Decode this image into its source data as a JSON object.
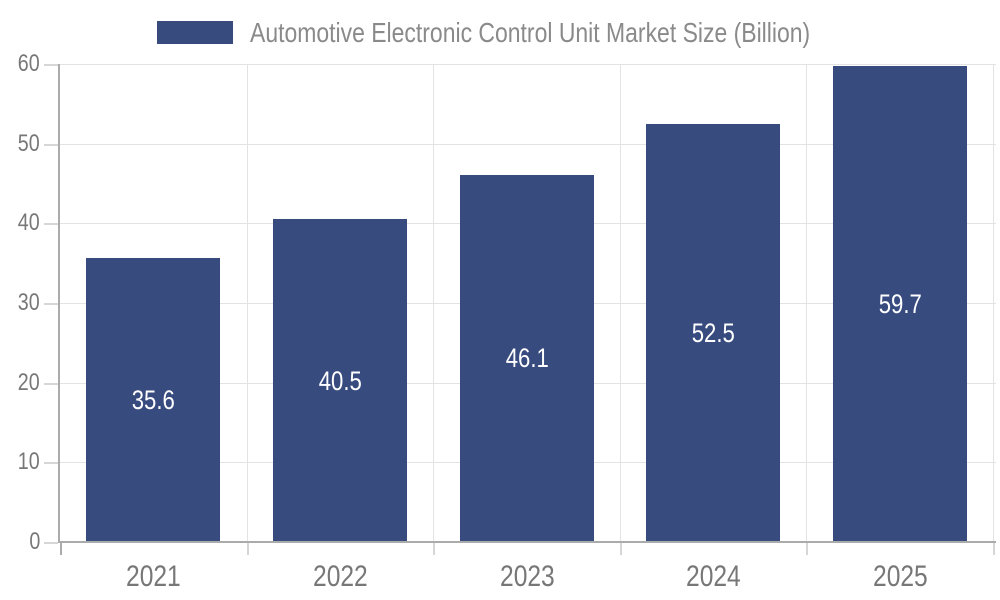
{
  "legend": {
    "label": "Automotive Electronic Control Unit Market Size (Billion)"
  },
  "chart_data": {
    "type": "bar",
    "title": "Automotive Electronic Control Unit Market Size (Billion)",
    "series_name": "Automotive Electronic Control Unit Market Size (Billion)",
    "categories": [
      "2021",
      "2022",
      "2023",
      "2024",
      "2025"
    ],
    "values": [
      35.6,
      40.5,
      46.1,
      52.5,
      59.7
    ],
    "value_labels": [
      "35.6",
      "40.5",
      "46.1",
      "52.5",
      "59.7"
    ],
    "xlabel": "",
    "ylabel": "",
    "ylim": [
      0,
      60
    ],
    "yticks": [
      0,
      10,
      20,
      30,
      40,
      50,
      60
    ],
    "grid": true,
    "legend_position": "top",
    "colors": {
      "bar": "#374B7F",
      "bar_value_label": "#FFFFFF",
      "grid_line": "#E3E3E3",
      "axis_line": "#ABABAB",
      "tick_mark": "#D6D6D6",
      "tick_text": "#777777",
      "legend_text": "#8A8A8A",
      "background": "#FFFFFF"
    }
  }
}
